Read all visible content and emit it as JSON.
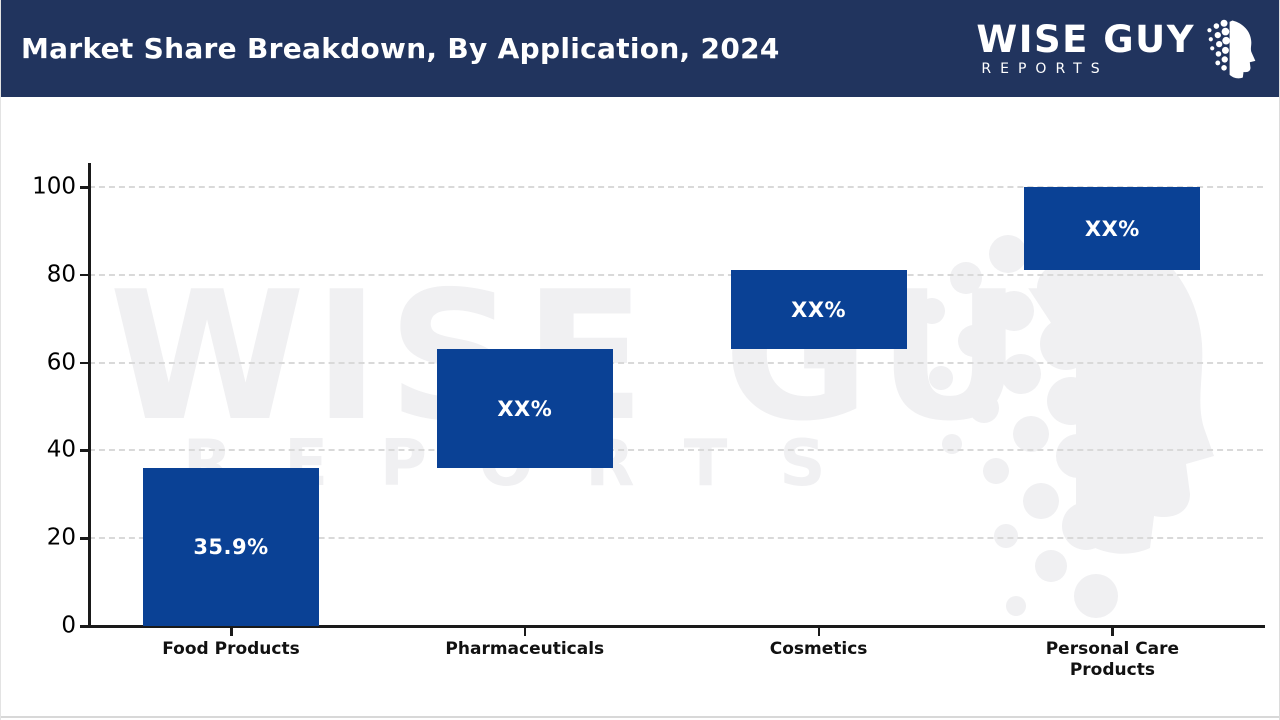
{
  "header": {
    "title": "Market Share Breakdown, By Application, 2024",
    "logo": {
      "wordmark": "WISE GUY",
      "subtitle": "REPORTS"
    }
  },
  "watermark": {
    "line1": "WISE GUY",
    "line2": "REPORTS"
  },
  "colors": {
    "header_bg": "#21345e",
    "bar": "#0a4195",
    "bar_label": "#ffffff",
    "axis": "#1a1a1a",
    "grid": "#d9d9d9",
    "watermark": "#f0f0f2",
    "tick_label": "#000000"
  },
  "chart_data": {
    "type": "bar",
    "subtype": "waterfall",
    "title": "Market Share Breakdown, By Application, 2024",
    "xlabel": "",
    "ylabel": "",
    "ylim": [
      0,
      105
    ],
    "yticks": [
      0,
      20,
      40,
      60,
      80,
      100
    ],
    "grid": "horizontal-dashed",
    "legend": "none",
    "categories": [
      "Food Products",
      "Pharmaceuticals",
      "Cosmetics",
      "Personal Care Products"
    ],
    "segments": [
      {
        "category": "Food Products",
        "start": 0,
        "end": 35.9,
        "label": "35.9%"
      },
      {
        "category": "Pharmaceuticals",
        "start": 35.9,
        "end": 63,
        "label": "XX%"
      },
      {
        "category": "Cosmetics",
        "start": 63,
        "end": 81,
        "label": "XX%"
      },
      {
        "category": "Personal Care Products",
        "start": 81,
        "end": 100,
        "label": "XX%"
      }
    ]
  }
}
